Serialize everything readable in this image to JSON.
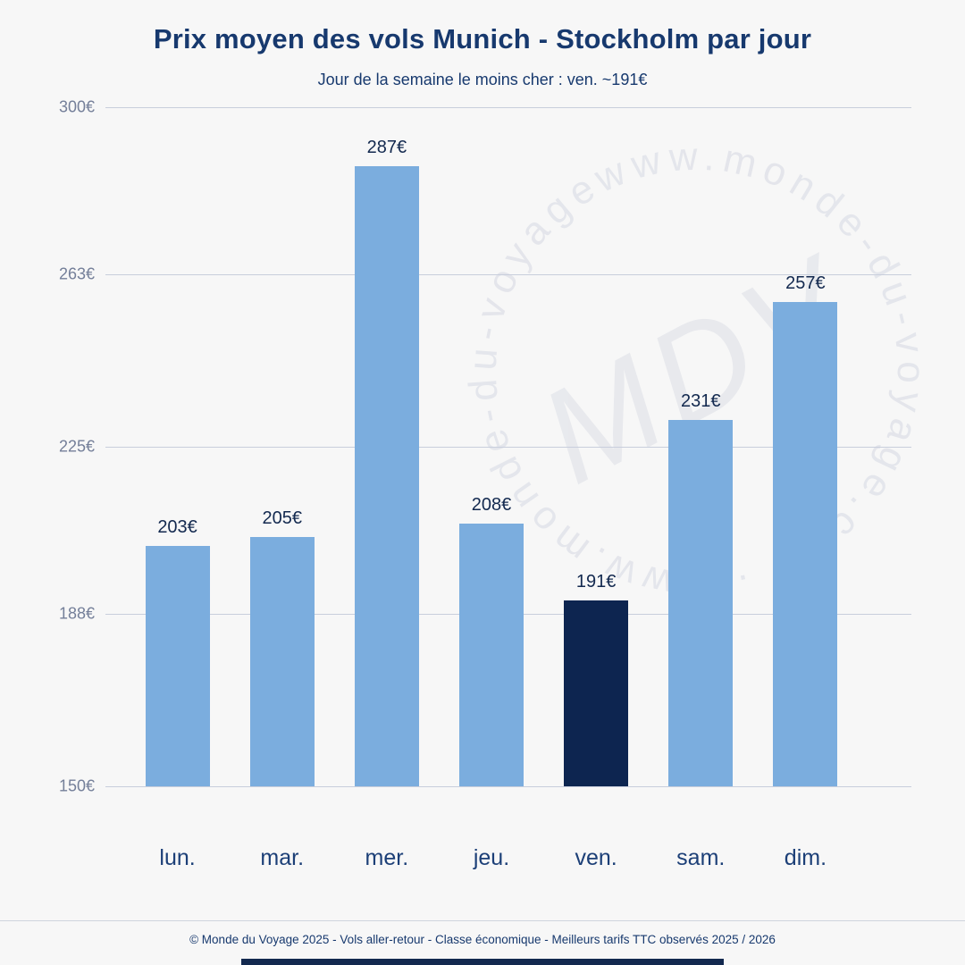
{
  "title": "Prix moyen des vols Munich - Stockholm par jour",
  "subtitle": "Jour de la semaine le moins cher : ven. ~191€",
  "footer": "© Monde du Voyage 2025 - Vols aller-retour - Classe économique - Meilleurs tarifs TTC observés 2025 / 2026",
  "watermark": {
    "ring_text": "www.monde-du-voyage.com",
    "center_text": "MDV"
  },
  "colors": {
    "background": "#f7f7f7",
    "bar": "#7badde",
    "bar_highlight": "#0d2550",
    "title": "#17396e",
    "grid": "#c8cedc",
    "tick_label": "#747f99"
  },
  "chart_data": {
    "type": "bar",
    "title": "Prix moyen des vols Munich - Stockholm par jour",
    "subtitle": "Jour de la semaine le moins cher : ven. ~191€",
    "categories": [
      "lun.",
      "mar.",
      "mer.",
      "jeu.",
      "ven.",
      "sam.",
      "dim."
    ],
    "values": [
      203,
      205,
      287,
      208,
      191,
      231,
      257
    ],
    "value_labels": [
      "203€",
      "205€",
      "287€",
      "208€",
      "191€",
      "231€",
      "257€"
    ],
    "highlight_category": "ven.",
    "currency_suffix": "€",
    "ylim": [
      150,
      300
    ],
    "yticks": [
      150,
      188,
      225,
      263,
      300
    ],
    "ytick_labels": [
      "150€",
      "188€",
      "225€",
      "263€",
      "300€"
    ],
    "xlabel": "",
    "ylabel": "",
    "grid": true,
    "legend": "none"
  }
}
